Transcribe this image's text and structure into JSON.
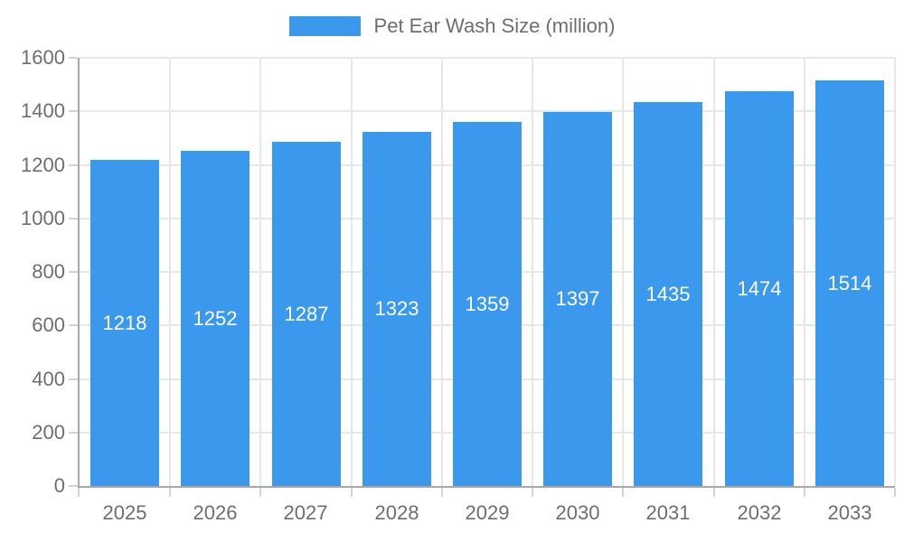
{
  "chart_data": {
    "type": "bar",
    "title": "Pet Ear Wash Size (million)",
    "categories": [
      "2025",
      "2026",
      "2027",
      "2028",
      "2029",
      "2030",
      "2031",
      "2032",
      "2033"
    ],
    "series": [
      {
        "name": "Pet Ear Wash Size (million)",
        "values": [
          1218,
          1252,
          1287,
          1323,
          1359,
          1397,
          1435,
          1474,
          1514
        ]
      }
    ],
    "bar_value_labels": [
      "1218",
      "1252",
      "1287",
      "1323",
      "1359",
      "1397",
      "1435",
      "1474",
      "1514"
    ],
    "xlabel": "",
    "ylabel": "",
    "ylim": [
      0,
      1600
    ],
    "yticks": [
      0,
      200,
      400,
      600,
      800,
      1000,
      1200,
      1400,
      1600
    ],
    "grid": true,
    "legend_position": "top",
    "colors": {
      "bar": "#3A99EC",
      "bar_label_text": "#ffffff",
      "axis_text": "#6e6e6e",
      "grid_line": "#e7e7e7",
      "tick_mark": "#d4d4d4",
      "axis_line": "#a8a8a8",
      "background": "#ffffff"
    }
  },
  "legend": {
    "label": "Pet Ear Wash Size (million)"
  }
}
